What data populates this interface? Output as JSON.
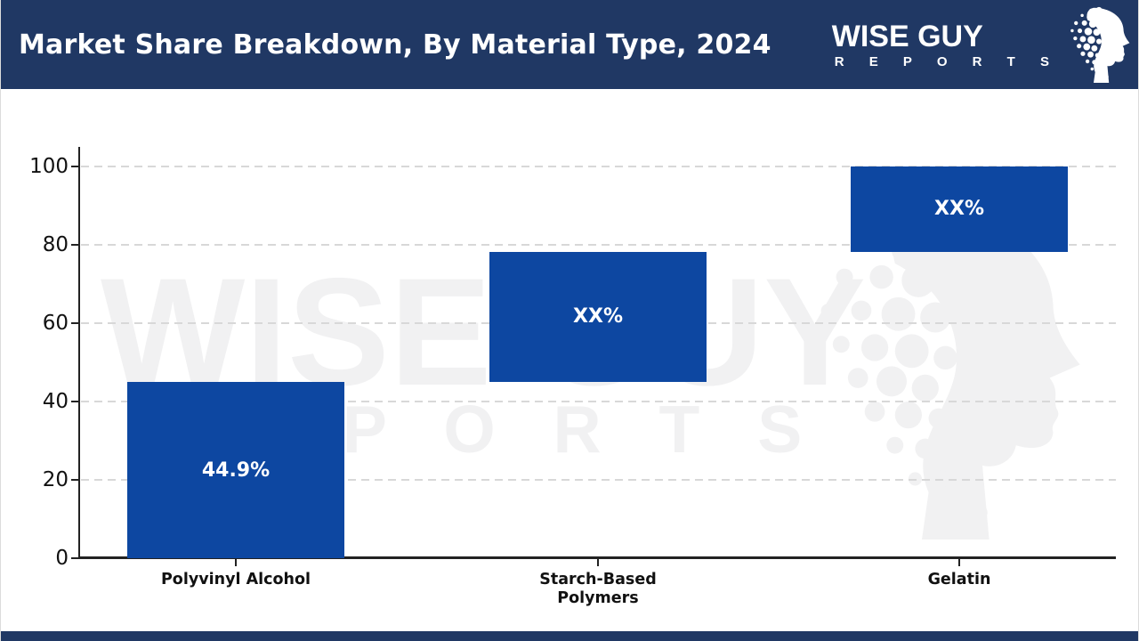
{
  "header": {
    "title": "Market Share Breakdown, By Material Type, 2024"
  },
  "logo": {
    "primary": "WISE GUY",
    "secondary": "R E P O R T S"
  },
  "watermark": {
    "primary": "WISE GUY",
    "secondary": "R E P O R T S"
  },
  "colors": {
    "header_bg": "#203864",
    "footer_bg": "#203864",
    "bar": "#0d47a1",
    "grid": "#d8d8d8",
    "axis": "#222222",
    "value_label": "#ffffff",
    "watermark": "#f1f1f2"
  },
  "chart_data": {
    "type": "bar",
    "subtype": "waterfall",
    "title": "Market Share Breakdown, By Material Type, 2024",
    "categories": [
      [
        "Polyvinyl Alcohol"
      ],
      [
        "Starch-Based",
        "Polymers"
      ],
      [
        "Gelatin"
      ]
    ],
    "segments": [
      {
        "category": "Polyvinyl Alcohol",
        "start": 0,
        "end": 44.9,
        "label": "44.9%"
      },
      {
        "category": "Starch-Based Polymers",
        "start": 44.9,
        "end": 78.2,
        "label": "XX%"
      },
      {
        "category": "Gelatin",
        "start": 78.2,
        "end": 100,
        "label": "XX%"
      }
    ],
    "ylim": [
      0,
      100
    ],
    "yticks": [
      0,
      20,
      40,
      60,
      80,
      100
    ],
    "xlabel": "",
    "ylabel": "",
    "grid": "horizontal-dashed",
    "legend": "none"
  }
}
